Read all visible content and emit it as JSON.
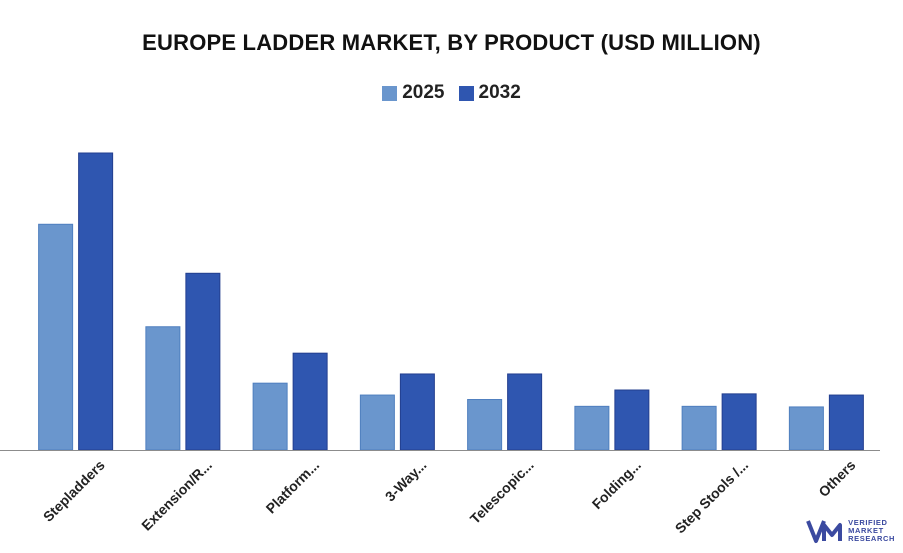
{
  "chart_data": {
    "type": "bar",
    "title": "EUROPE LADDER MARKET, BY PRODUCT (USD MILLION)",
    "categories": [
      "Stepladders",
      "Extension/R...",
      "Platform...",
      "3-Way...",
      "Telescopic...",
      "Folding...",
      "Step Stools /...",
      "Others"
    ],
    "series": [
      {
        "name": "2025",
        "color": "#6a96cd",
        "values": [
          76,
          41.5,
          22.5,
          18.5,
          17,
          14.7,
          14.7,
          14.5
        ]
      },
      {
        "name": "2032",
        "color": "#2f56b0",
        "values": [
          100,
          59.5,
          32.6,
          25.6,
          25.6,
          20.2,
          18.9,
          18.5
        ]
      }
    ],
    "xlabel": "",
    "ylabel": "",
    "ylim": [
      0,
      100
    ],
    "grid": false,
    "legend_position": "top-center"
  },
  "branding": {
    "logo_lines": [
      "VERIFIED",
      "MARKET",
      "RESEARCH"
    ],
    "logo_color": "#3b4aa0"
  }
}
